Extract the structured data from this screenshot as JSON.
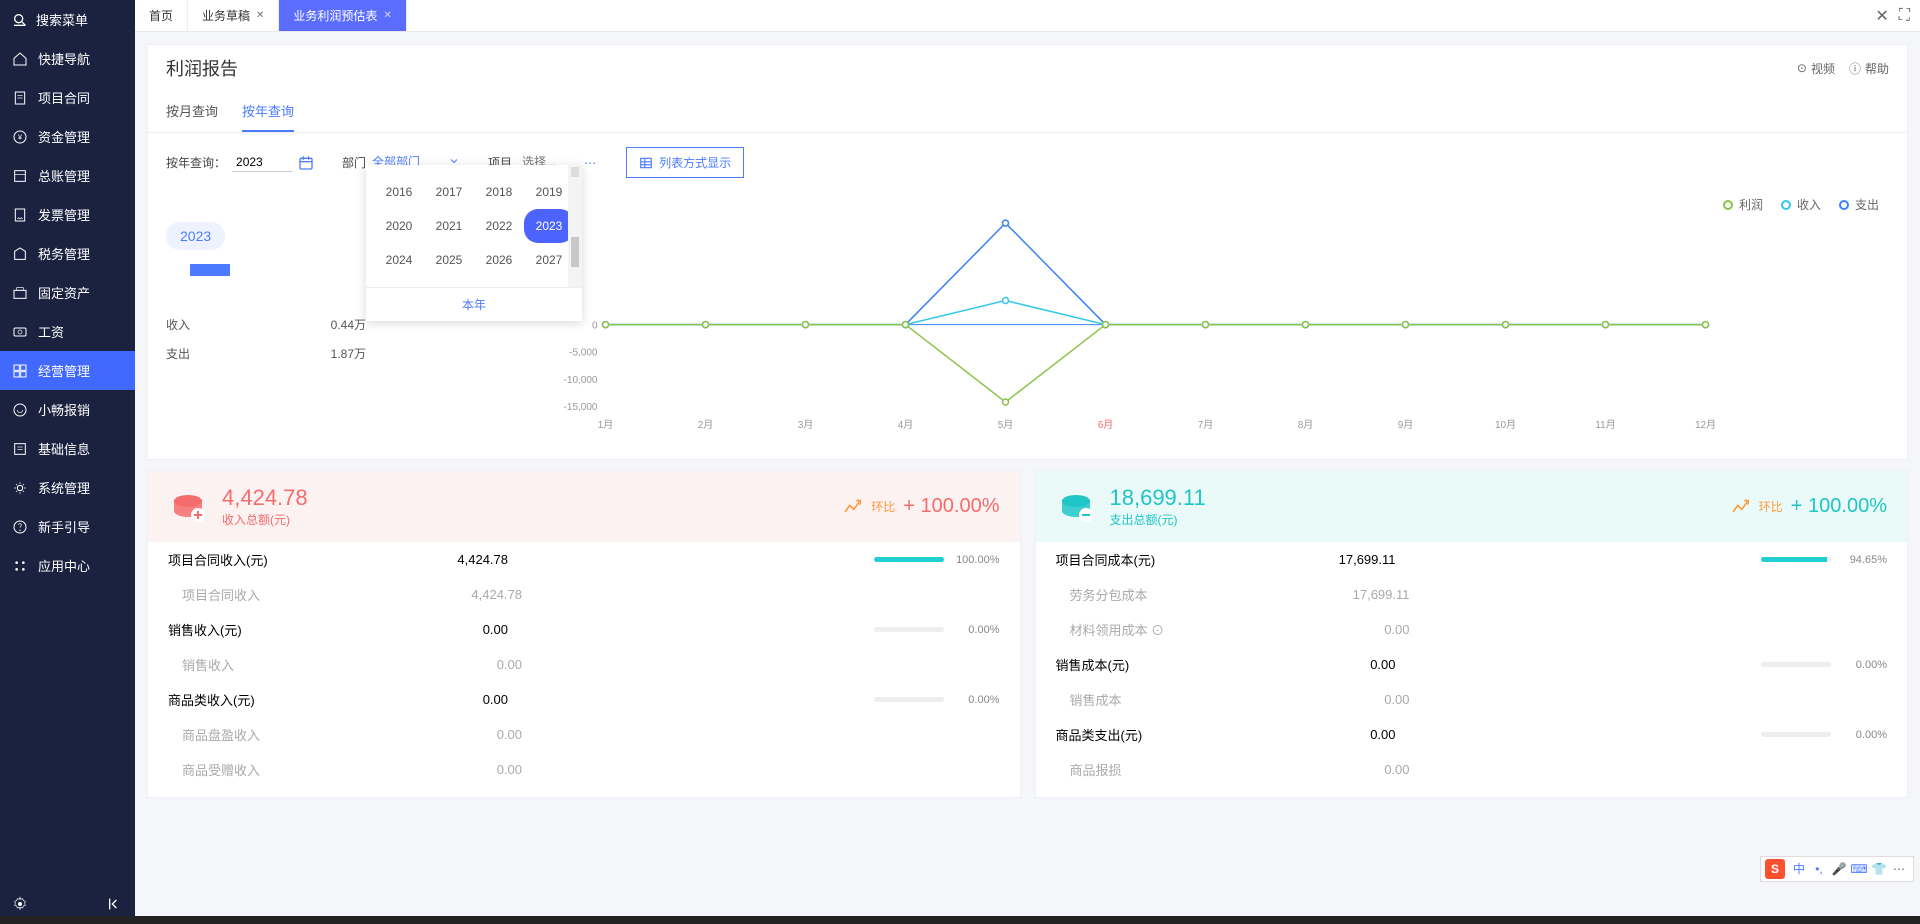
{
  "sidebar": {
    "search_label": "搜索菜单",
    "items": [
      {
        "label": "快捷导航",
        "icon": "home"
      },
      {
        "label": "项目合同",
        "icon": "doc"
      },
      {
        "label": "资金管理",
        "icon": "money"
      },
      {
        "label": "总账管理",
        "icon": "ledger"
      },
      {
        "label": "发票管理",
        "icon": "invoice"
      },
      {
        "label": "税务管理",
        "icon": "tax"
      },
      {
        "label": "固定资产",
        "icon": "asset"
      },
      {
        "label": "工资",
        "icon": "salary"
      },
      {
        "label": "经营管理",
        "icon": "ops",
        "active": true
      },
      {
        "label": "小畅报销",
        "icon": "reimburse"
      },
      {
        "label": "基础信息",
        "icon": "base"
      },
      {
        "label": "系统管理",
        "icon": "system"
      },
      {
        "label": "新手引导",
        "icon": "guide"
      },
      {
        "label": "应用中心",
        "icon": "apps"
      }
    ]
  },
  "tabs": [
    {
      "label": "首页",
      "closable": false
    },
    {
      "label": "业务草稿",
      "closable": true
    },
    {
      "label": "业务利润预估表",
      "closable": true,
      "active": true
    }
  ],
  "page_title": "利润报告",
  "help": {
    "video": "视频",
    "help": "帮助"
  },
  "query_tabs": {
    "month": "按月查询",
    "year": "按年查询",
    "active": "year"
  },
  "filters": {
    "year_label": "按年查询：",
    "year_value": "2023",
    "dept_label": "部门",
    "dept_value": "全部部门",
    "proj_label": "项目",
    "proj_placeholder": "选择...",
    "table_btn": "列表方式显示"
  },
  "year_picker": {
    "years": [
      "2016",
      "2017",
      "2018",
      "2019",
      "2020",
      "2021",
      "2022",
      "2023",
      "2024",
      "2025",
      "2026",
      "2027"
    ],
    "selected": "2023",
    "footer": "本年"
  },
  "mini_panel": {
    "year": "2023",
    "rows": [
      {
        "label": "收入",
        "value": "0.44万"
      },
      {
        "label": "支出",
        "value": "1.87万"
      }
    ]
  },
  "chart": {
    "legend": [
      {
        "label": "利润",
        "color": "#8bc34a"
      },
      {
        "label": "收入",
        "color": "#34c8eb"
      },
      {
        "label": "支出",
        "color": "#3b82f6"
      }
    ],
    "months": [
      "1月",
      "2月",
      "3月",
      "4月",
      "5月",
      "6月",
      "7月",
      "8月",
      "9月",
      "10月",
      "11月",
      "12月"
    ],
    "highlight_month": "6月",
    "y_ticks": [
      "-15,000",
      "-10,000",
      "-5,000",
      "0"
    ],
    "y_range": [
      -15000,
      20000
    ],
    "series": {
      "profit": [
        0,
        0,
        0,
        0,
        -14275,
        0,
        0,
        0,
        0,
        0,
        0,
        0
      ],
      "income": [
        0,
        0,
        0,
        0,
        4425,
        0,
        0,
        0,
        0,
        0,
        0,
        0
      ],
      "expense": [
        0,
        0,
        0,
        0,
        18699,
        0,
        0,
        0,
        0,
        0,
        0,
        0
      ]
    },
    "colors": {
      "profit": "#8bc34a",
      "income": "#34c8eb",
      "expense": "#3b82f6",
      "grid": "#eeeeee",
      "axis_text": "#999999"
    }
  },
  "summary": {
    "income": {
      "amount": "4,424.78",
      "sub": "收入总额(元)",
      "ratio_label": "环比",
      "ratio_value": "+ 100.00%",
      "rows": [
        {
          "label": "项目合同收入(元)",
          "value": "4,424.78",
          "pct": 100.0,
          "pct_text": "100.00%"
        },
        {
          "label": "项目合同收入",
          "value": "4,424.78",
          "sub": true
        },
        {
          "label": "销售收入(元)",
          "value": "0.00",
          "pct": 0,
          "pct_text": "0.00%"
        },
        {
          "label": "销售收入",
          "value": "0.00",
          "sub": true
        },
        {
          "label": "商品类收入(元)",
          "value": "0.00",
          "pct": 0,
          "pct_text": "0.00%"
        },
        {
          "label": "商品盘盈收入",
          "value": "0.00",
          "sub": true
        },
        {
          "label": "商品受赠收入",
          "value": "0.00",
          "sub": true
        }
      ]
    },
    "expense": {
      "amount": "18,699.11",
      "sub": "支出总额(元)",
      "ratio_label": "环比",
      "ratio_value": "+ 100.00%",
      "rows": [
        {
          "label": "项目合同成本(元)",
          "value": "17,699.11",
          "pct": 94.65,
          "pct_text": "94.65%"
        },
        {
          "label": "劳务分包成本",
          "value": "17,699.11",
          "sub": true
        },
        {
          "label": "材料领用成本 ⊙",
          "value": "0.00",
          "sub": true
        },
        {
          "label": "销售成本(元)",
          "value": "0.00",
          "pct": 0,
          "pct_text": "0.00%"
        },
        {
          "label": "销售成本",
          "value": "0.00",
          "sub": true
        },
        {
          "label": "商品类支出(元)",
          "value": "0.00",
          "pct": 0,
          "pct_text": "0.00%"
        },
        {
          "label": "商品报损",
          "value": "0.00",
          "sub": true
        }
      ]
    }
  },
  "ime": {
    "logo": "S",
    "items": [
      "中",
      "•,",
      "🎤",
      "⌨",
      "👕",
      "⋯"
    ]
  }
}
